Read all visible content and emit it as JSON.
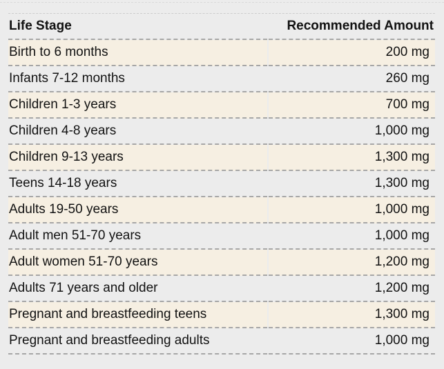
{
  "page": {
    "background_color": "#ececec"
  },
  "table": {
    "columns": [
      {
        "label": "Life Stage"
      },
      {
        "label": "Recommended Amount"
      }
    ],
    "rows": [
      {
        "stage": "Birth to 6 months",
        "amount": "200 mg"
      },
      {
        "stage": "Infants 7-12 months",
        "amount": "260 mg"
      },
      {
        "stage": "Children 1-3 years",
        "amount": "700 mg"
      },
      {
        "stage": "Children 4-8 years",
        "amount": "1,000 mg"
      },
      {
        "stage": "Children 9-13 years",
        "amount": "1,300 mg"
      },
      {
        "stage": "Teens 14-18 years",
        "amount": "1,300 mg"
      },
      {
        "stage": "Adults 19-50 years",
        "amount": "1,000 mg"
      },
      {
        "stage": "Adult men 51-70 years",
        "amount": "1,000 mg"
      },
      {
        "stage": "Adult women 51-70 years",
        "amount": "1,200 mg"
      },
      {
        "stage": "Adults 71 years and older",
        "amount": "1,200 mg"
      },
      {
        "stage": "Pregnant and breastfeeding teens",
        "amount": "1,300 mg"
      },
      {
        "stage": "Pregnant and breastfeeding adults",
        "amount": "1,000 mg"
      }
    ],
    "colors": {
      "stripe_beige": "#f6efe2",
      "row_plain": "#ececec",
      "separator_dash": "#a6a6a6",
      "top_border_dash": "#cdcdcd",
      "text": "#121212"
    }
  },
  "chart_data": {
    "type": "table",
    "columns": [
      "Life Stage",
      "Recommended Amount"
    ],
    "rows": [
      [
        "Birth to 6 months",
        "200 mg"
      ],
      [
        "Infants 7-12 months",
        "260 mg"
      ],
      [
        "Children 1-3 years",
        "700 mg"
      ],
      [
        "Children 4-8 years",
        "1,000 mg"
      ],
      [
        "Children 9-13 years",
        "1,300 mg"
      ],
      [
        "Teens 14-18 years",
        "1,300 mg"
      ],
      [
        "Adults 19-50 years",
        "1,000 mg"
      ],
      [
        "Adult men 51-70 years",
        "1,000 mg"
      ],
      [
        "Adult women 51-70 years",
        "1,200 mg"
      ],
      [
        "Adults 71 years and older",
        "1,200 mg"
      ],
      [
        "Pregnant and breastfeeding teens",
        "1,300 mg"
      ],
      [
        "Pregnant and breastfeeding adults",
        "1,000 mg"
      ]
    ],
    "values_mg": [
      200,
      260,
      700,
      1000,
      1300,
      1300,
      1000,
      1000,
      1200,
      1200,
      1300,
      1000
    ],
    "unit": "mg",
    "layout_hints": {
      "striped": true,
      "stripe_rows": "odd data rows (1st, 3rd, 5th, ...)",
      "amount_column_alignment": "right",
      "separators": "horizontal dashed lines between all rows"
    }
  }
}
